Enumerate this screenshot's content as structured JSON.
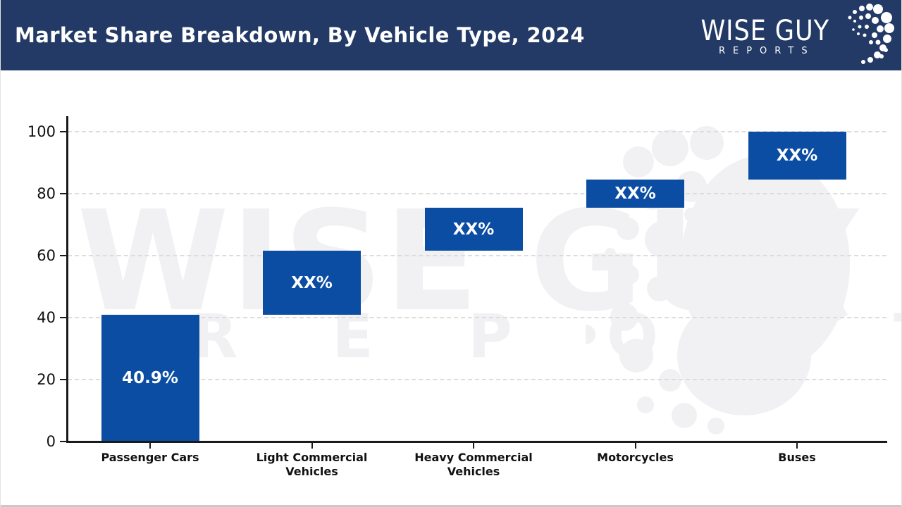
{
  "header": {
    "title": "Market Share Breakdown, By Vehicle Type, 2024",
    "bg_color": "#223A65",
    "logo": {
      "line1": "WISE GUY",
      "line2": "REPORTS"
    },
    "icons": {
      "logo_head": "dotted-face-profile"
    }
  },
  "watermark": {
    "line1": "WISE GUY",
    "line2": "R E P O R T S",
    "head_icon": "dotted-face-profile-watermark",
    "color": "#f1f1f4"
  },
  "chart_data": {
    "type": "bar",
    "subtype": "waterfall",
    "title": "Market Share Breakdown, By Vehicle Type, 2024",
    "categories": [
      "Passenger Cars",
      "Light Commercial Vehicles",
      "Heavy Commercial Vehicles",
      "Motorcycles",
      "Buses"
    ],
    "segments": [
      {
        "category": "Passenger Cars",
        "start": 0,
        "end": 40.9,
        "value": 40.9,
        "label": "40.9%"
      },
      {
        "category": "Light Commercial Vehicles",
        "start": 40.9,
        "end": 61.5,
        "value": 20.6,
        "label": "XX%"
      },
      {
        "category": "Heavy Commercial Vehicles",
        "start": 61.5,
        "end": 75.5,
        "value": 14.0,
        "label": "XX%"
      },
      {
        "category": "Motorcycles",
        "start": 75.5,
        "end": 84.5,
        "value": 9.0,
        "label": "XX%"
      },
      {
        "category": "Buses",
        "start": 84.5,
        "end": 100,
        "value": 15.5,
        "label": "XX%"
      }
    ],
    "xlabel": "",
    "ylabel": "",
    "ylim": [
      0,
      100
    ],
    "yticks": [
      0,
      20,
      40,
      60,
      80,
      100
    ],
    "grid": "horizontal-dashed",
    "legend": "none",
    "bar_color": "#0B4DA2",
    "bar_label_color": "#ffffff",
    "axis_color": "#1a1a1a"
  }
}
